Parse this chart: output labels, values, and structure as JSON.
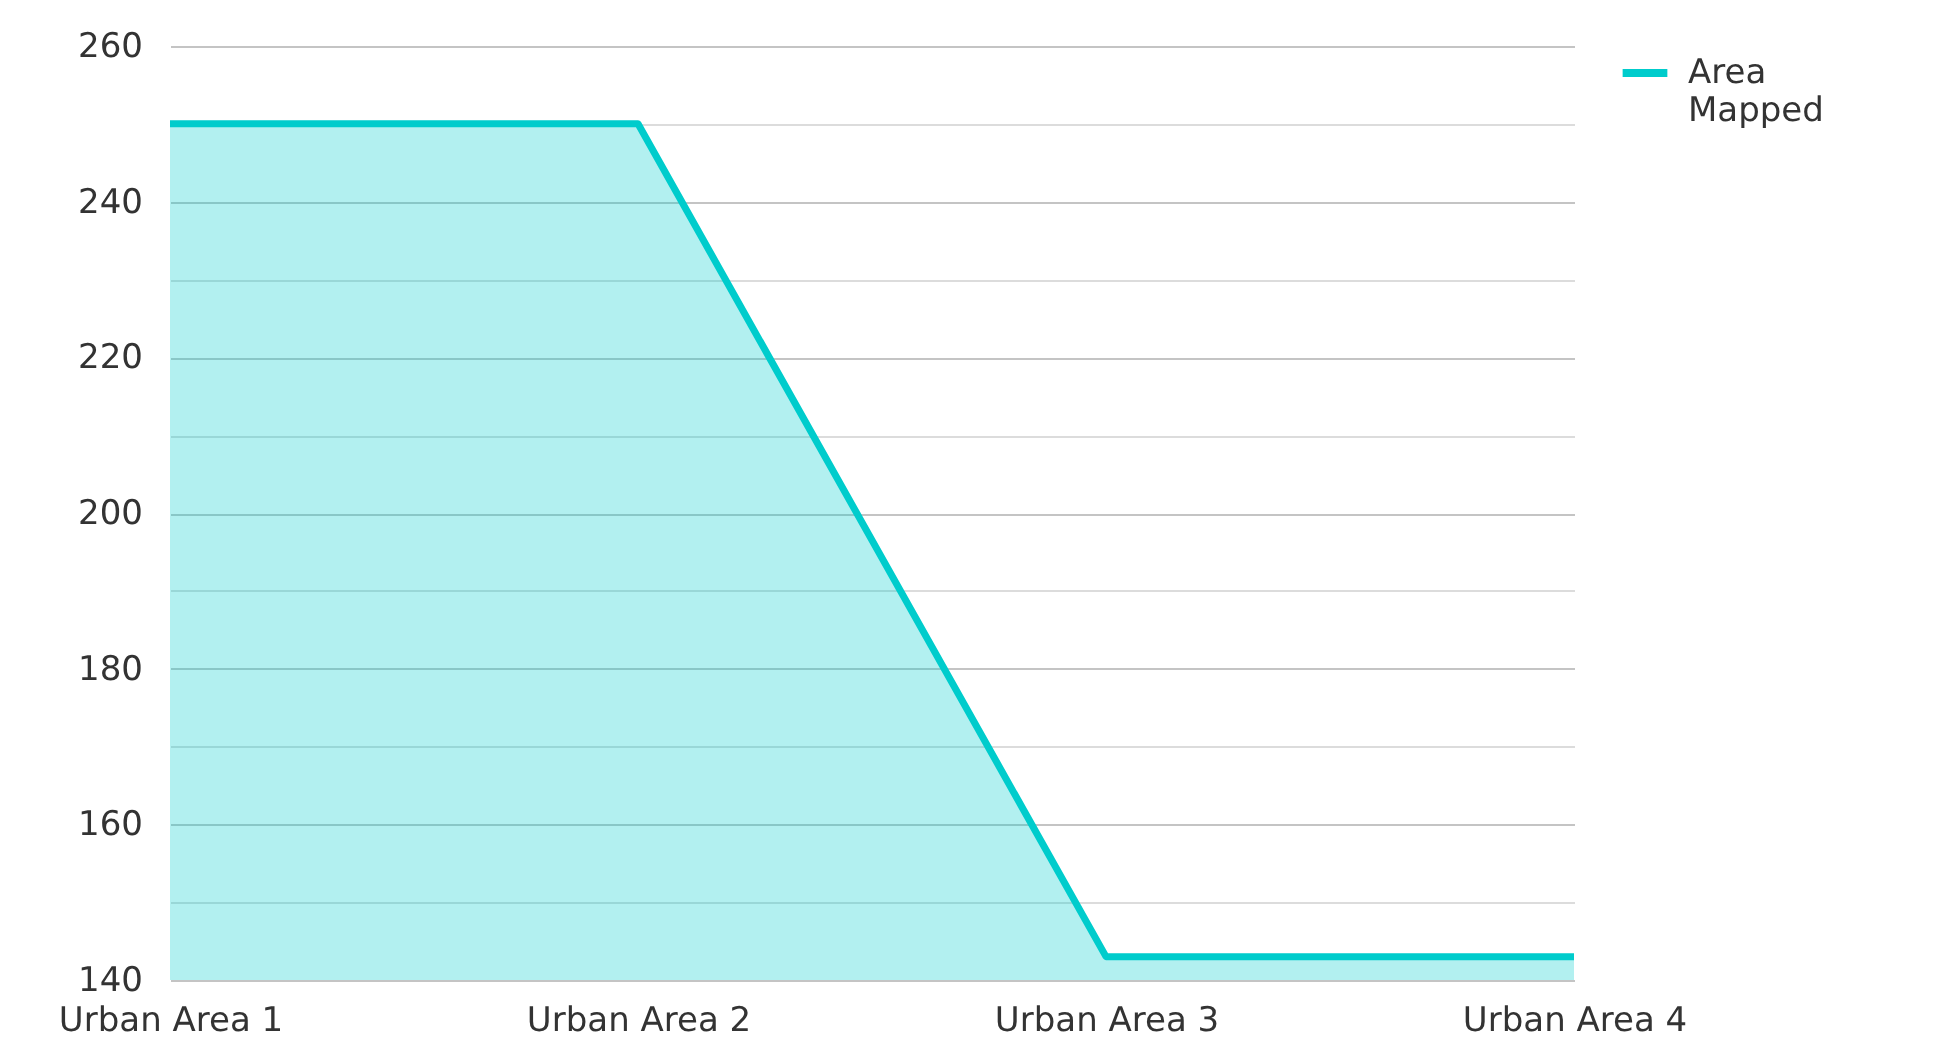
{
  "chart_data": {
    "type": "area",
    "categories": [
      "Urban Area 1",
      "Urban Area 2",
      "Urban Area 3",
      "Urban Area 4"
    ],
    "series": [
      {
        "name": "Area Mapped",
        "color": "#00cccc",
        "values": [
          250,
          250,
          143,
          143
        ]
      }
    ],
    "ylim": [
      140,
      260
    ],
    "yticks": [
      140,
      {
        "value": 150,
        "label": null
      },
      160,
      {
        "value": 170,
        "label": null
      },
      180,
      {
        "value": 190,
        "label": null
      },
      200,
      {
        "value": 210,
        "label": null
      },
      220,
      {
        "value": 230,
        "label": null
      },
      240,
      {
        "value": 250,
        "label": null
      },
      260
    ],
    "grid": true,
    "legend": "top right"
  }
}
